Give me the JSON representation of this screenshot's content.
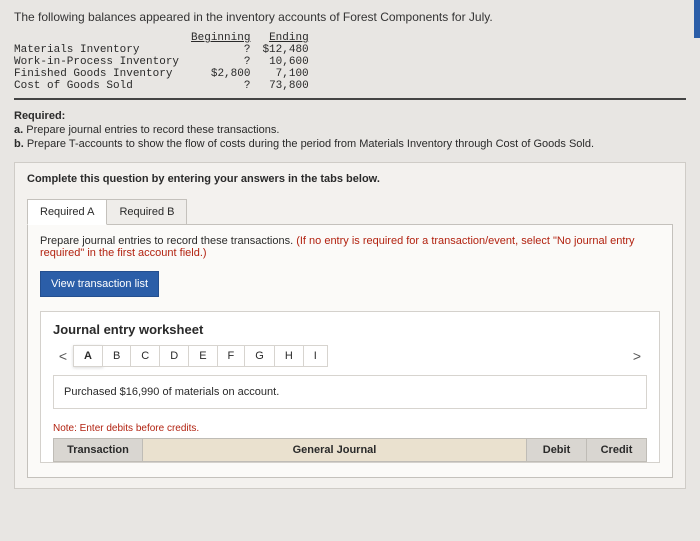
{
  "intro": "The following balances appeared in the inventory accounts of Forest Components for July.",
  "balances": {
    "headers": [
      "Beginning",
      "Ending"
    ],
    "rows": [
      {
        "label": "Materials Inventory",
        "beginning": "?",
        "ending": "$12,480"
      },
      {
        "label": "Work-in-Process Inventory",
        "beginning": "?",
        "ending": "10,600"
      },
      {
        "label": "Finished Goods Inventory",
        "beginning": "$2,800",
        "ending": "7,100"
      },
      {
        "label": "Cost of Goods Sold",
        "beginning": "?",
        "ending": "73,800"
      }
    ]
  },
  "required_label": "Required:",
  "required": {
    "a": "a. Prepare journal entries to record these transactions.",
    "b": "b. Prepare T-accounts to show the flow of costs during the period from Materials Inventory through Cost of Goods Sold."
  },
  "panel_instruction": "Complete this question by entering your answers in the tabs below.",
  "tabs": {
    "a": "Required A",
    "b": "Required B"
  },
  "tab_a": {
    "text_black": "Prepare journal entries to record these transactions. ",
    "text_red": "(If no entry is required for a transaction/event, select \"No journal entry required\" in the first account field.)",
    "view_btn": "View transaction list",
    "ws_title": "Journal entry worksheet",
    "letters": [
      "A",
      "B",
      "C",
      "D",
      "E",
      "F",
      "G",
      "H",
      "I"
    ],
    "chev_left": "<",
    "chev_right": ">",
    "txn_desc": "Purchased $16,990 of materials on account.",
    "note": "Note: Enter debits before credits.",
    "cols": {
      "tx": "Transaction",
      "gj": "General Journal",
      "dr": "Debit",
      "cr": "Credit"
    }
  }
}
